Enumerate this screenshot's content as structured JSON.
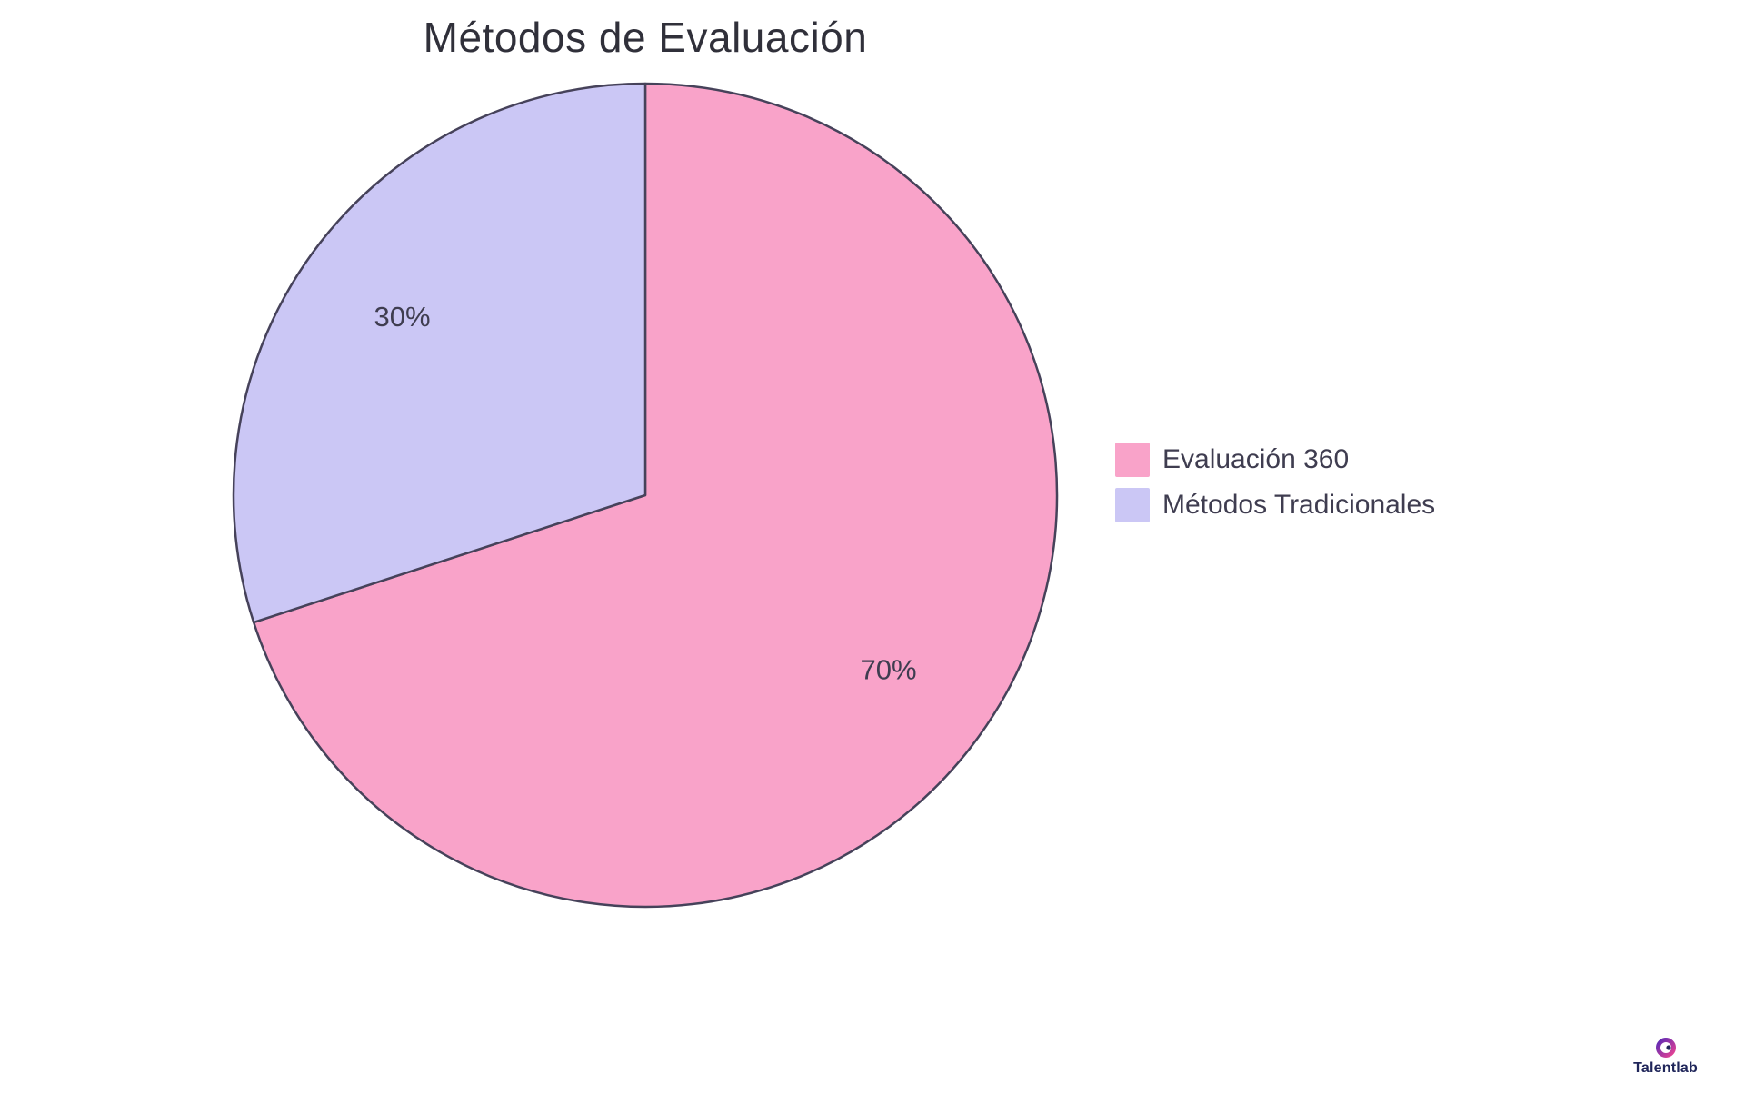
{
  "title": "Métodos de Evaluación",
  "chart_data": {
    "type": "pie",
    "labels": [
      "Evaluación 360",
      "Métodos Tradicionales"
    ],
    "values": [
      70,
      30
    ],
    "value_labels": [
      "70%",
      "30%"
    ],
    "colors": [
      "#f9a3c9",
      "#cbc7f5"
    ],
    "stroke_color": "#46425a",
    "label_color": "#3f3d50",
    "start_angle_deg": 0,
    "direction": "clockwise",
    "legend_position": "right",
    "title": "Métodos de Evaluación"
  },
  "legend": {
    "items": [
      {
        "label": "Evaluación 360",
        "color": "#f9a3c9"
      },
      {
        "label": "Métodos Tradicionales",
        "color": "#cbc7f5"
      }
    ]
  },
  "branding": {
    "logo_text": "Talentlab",
    "logo_colors": {
      "purple": "#5b2ab5",
      "pink": "#e84393",
      "navy": "#20265a"
    }
  }
}
